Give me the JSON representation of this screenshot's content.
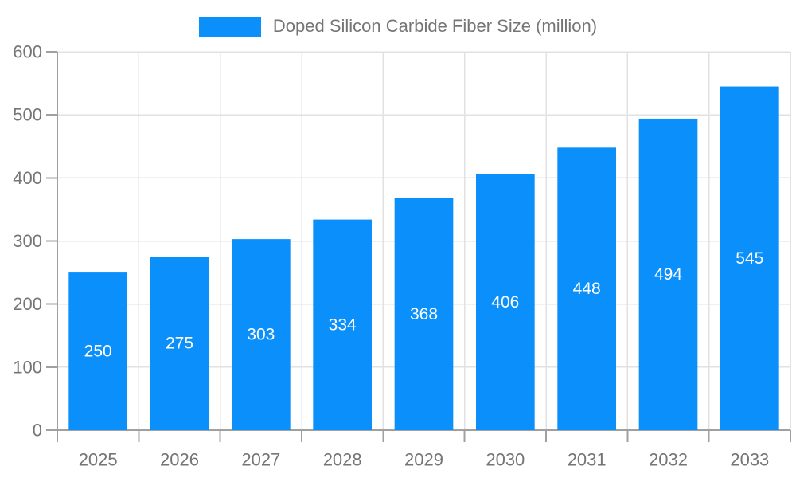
{
  "chart_data": {
    "type": "bar",
    "title": "Doped Silicon Carbide Fiber Size (million)",
    "categories": [
      "2025",
      "2026",
      "2027",
      "2028",
      "2029",
      "2030",
      "2031",
      "2032",
      "2033"
    ],
    "values": [
      250,
      275,
      303,
      334,
      368,
      406,
      448,
      494,
      545
    ],
    "series_name": "Doped Silicon Carbide Fiber Size (million)",
    "xlabel": "",
    "ylabel": "",
    "ylim": [
      0,
      600
    ],
    "ytick_interval": 100,
    "ytick_labels": [
      "0",
      "100",
      "200",
      "300",
      "400",
      "500",
      "600"
    ],
    "grid": true,
    "legend_position": "top-center",
    "bar_labels_visible": true,
    "colors": {
      "bar": "#0b90fb",
      "bar_label": "#ffffff",
      "axis": "#a0a0a0",
      "grid": "#e2e2e2",
      "text": "#757575"
    }
  }
}
